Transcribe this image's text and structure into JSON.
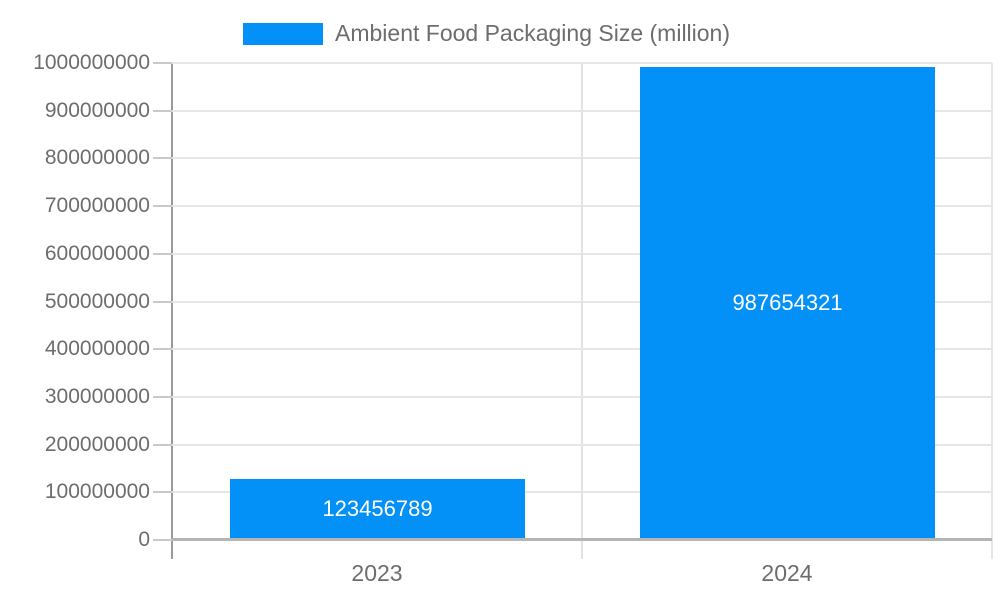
{
  "legend": {
    "label": "Ambient Food Packaging Size (million)"
  },
  "chart_data": {
    "type": "bar",
    "title": "Ambient Food Packaging Size (million)",
    "categories": [
      "2023",
      "2024"
    ],
    "values": [
      123456789,
      987654321
    ],
    "bar_value_labels": [
      "123456789",
      "987654321"
    ],
    "xlabel": "",
    "ylabel": "",
    "ylim": [
      0,
      1000000000
    ],
    "yticks": [
      0,
      100000000,
      200000000,
      300000000,
      400000000,
      500000000,
      600000000,
      700000000,
      800000000,
      900000000,
      1000000000
    ],
    "grid": true,
    "legend_position": "top-center",
    "colors": {
      "bar": "#0390f7",
      "axis_text": "#6d6d6d",
      "gridline": "#e6e6e6",
      "axis_line": "#9a9a9a",
      "baseline": "#b5b5b5",
      "bar_label_text": "#ffffff"
    }
  }
}
